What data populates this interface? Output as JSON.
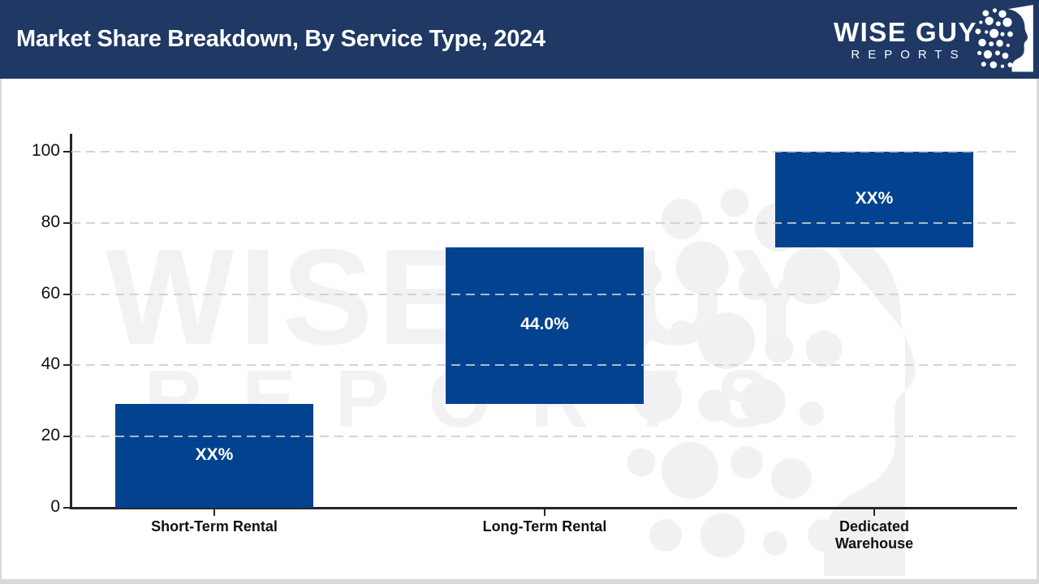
{
  "header": {
    "title": "Market Share Breakdown, By Service Type, 2024",
    "logo": {
      "line1": "WISE GUY",
      "line2": "REPORTS"
    }
  },
  "watermark": {
    "line1": "WISE GUY",
    "line2": "REPORTS"
  },
  "chart_data": {
    "type": "bar",
    "subtype": "waterfall",
    "title": "Market Share Breakdown, By Service Type, 2024",
    "xlabel": "",
    "ylabel": "",
    "ylim": [
      0,
      100
    ],
    "yticks": [
      0,
      20,
      40,
      60,
      80,
      100
    ],
    "grid": "dashed-horizontal",
    "legend": "none",
    "categories": [
      "Short-Term Rental",
      "Long-Term Rental",
      "Dedicated\nWarehouse"
    ],
    "segments": [
      {
        "category": "Short-Term Rental",
        "start": 0,
        "end": 29.2,
        "value": 29.2,
        "label": "XX%"
      },
      {
        "category": "Long-Term Rental",
        "start": 29.2,
        "end": 73.2,
        "value": 44.0,
        "label": "44.0%"
      },
      {
        "category": "Dedicated Warehouse",
        "start": 73.2,
        "end": 100,
        "value": 26.8,
        "label": "XX%"
      }
    ]
  },
  "colors": {
    "header_bg": "#1f3864",
    "bar_fill": "#03428f",
    "bar_label": "#ffffff",
    "axis": "#262626",
    "gridline": "#d2d2d2",
    "frame_edge": "#d9d9d9",
    "watermark": "#f2f2f4",
    "title_text": "#ffffff"
  }
}
